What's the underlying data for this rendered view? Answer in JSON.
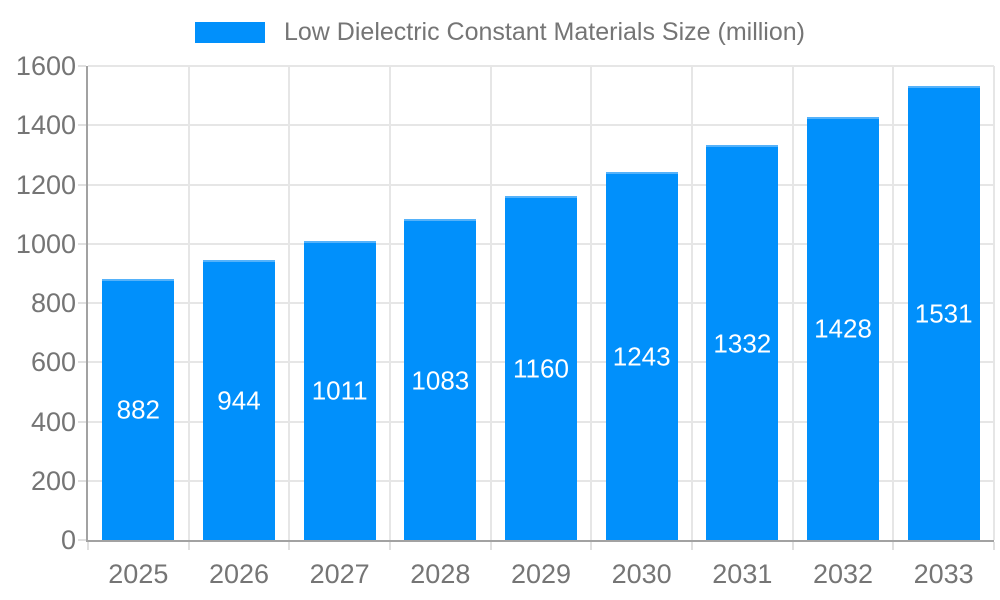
{
  "chart_data": {
    "type": "bar",
    "title": "Low Dielectric Constant Materials Size (million)",
    "legend_entries": [
      "Low Dielectric Constant Materials Size (million)"
    ],
    "legend_position": "top",
    "categories": [
      "2025",
      "2026",
      "2027",
      "2028",
      "2029",
      "2030",
      "2031",
      "2032",
      "2033"
    ],
    "values": [
      882,
      944,
      1011,
      1083,
      1160,
      1243,
      1332,
      1428,
      1531
    ],
    "data_labels": [
      "882",
      "944",
      "1011",
      "1083",
      "1160",
      "1243",
      "1332",
      "1428",
      "1531"
    ],
    "xlabel": "",
    "ylabel": "",
    "ylim": [
      0,
      1600
    ],
    "yticks": [
      0,
      200,
      400,
      600,
      800,
      1000,
      1200,
      1400,
      1600
    ],
    "grid": true,
    "colors": {
      "bar": "#0190FB",
      "bar_top_edge": "#55B2FA",
      "axis_text": "#757575",
      "data_label_text": "#FFFFFF",
      "gridline": "#E6E6E6",
      "tick": "#E0E0E0",
      "axis_line": "#A2A2A2",
      "background": "#FFFFFF"
    }
  }
}
